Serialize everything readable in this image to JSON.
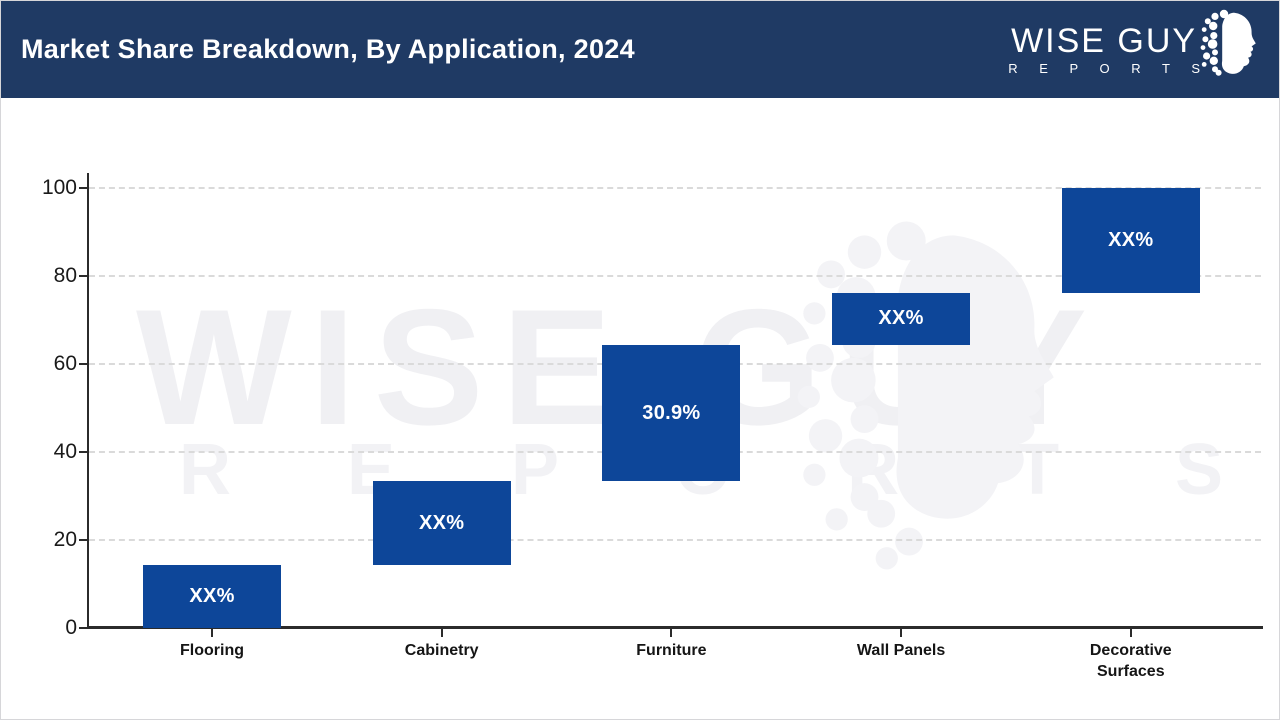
{
  "header": {
    "title": "Market Share Breakdown, By Application, 2024",
    "background_color": "#1f3a64",
    "logo": {
      "wordmark": "WISE GUY",
      "subtext": "R E P O R T S",
      "head_icon": "dotted-face-profile"
    }
  },
  "watermark": {
    "wordmark": "WISE GUY",
    "subtext": "REPORTS",
    "graphic": "dotted-face-profile"
  },
  "chart_data": {
    "type": "bar",
    "subtype": "waterfall-floating-bars",
    "title": "Market Share Breakdown, By Application, 2024",
    "xlabel": "",
    "ylabel": "",
    "ylim": [
      0,
      100
    ],
    "yticks": [
      0,
      20,
      40,
      60,
      80,
      100
    ],
    "grid": "dashed-horizontal",
    "legend": "none",
    "bar_color": "#0d4699",
    "categories": [
      "Flooring",
      "Cabinetry",
      "Furniture",
      "Wall Panels",
      "Decorative Surfaces"
    ],
    "segments": [
      {
        "category": "Flooring",
        "start": 0,
        "end": 14.3,
        "value_label": "XX%"
      },
      {
        "category": "Cabinetry",
        "start": 14.3,
        "end": 33.4,
        "value_label": "XX%"
      },
      {
        "category": "Furniture",
        "start": 33.4,
        "end": 64.3,
        "value_label": "30.9%"
      },
      {
        "category": "Wall Panels",
        "start": 64.3,
        "end": 76.2,
        "value_label": "XX%"
      },
      {
        "category": "Decorative Surfaces",
        "start": 76.2,
        "end": 100,
        "value_label": "XX%"
      }
    ]
  }
}
